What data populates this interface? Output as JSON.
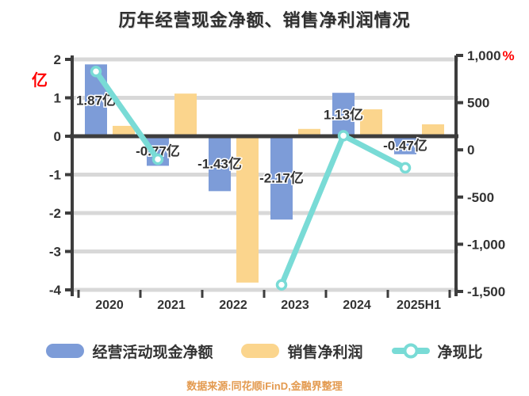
{
  "title": "历年经营现金净额、销售净利润情况",
  "axes": {
    "left": {
      "unit": "亿",
      "unit_color": "#FF0000",
      "tick_labels": [
        "2",
        "1",
        "0",
        "-1",
        "-2",
        "-3",
        "-4"
      ],
      "tick_values": [
        2,
        1,
        0,
        -1,
        -2,
        -3,
        -4
      ]
    },
    "right": {
      "unit": "%",
      "unit_color": "#FF0000",
      "tick_labels": [
        "1,000",
        "500",
        "0",
        "-500",
        "-1,000",
        "-1,500"
      ],
      "tick_values": [
        1000,
        500,
        0,
        -500,
        -1000,
        -1500
      ]
    },
    "x": {
      "categories": [
        "2020",
        "2021",
        "2022",
        "2023",
        "2024",
        "2025H1"
      ]
    }
  },
  "chart_data": {
    "type": "bar",
    "categories": [
      "2020",
      "2021",
      "2022",
      "2023",
      "2024",
      "2025H1"
    ],
    "series": [
      {
        "name": "经营活动现金净额",
        "type": "bar",
        "axis": "left",
        "unit": "亿",
        "color": "#7D9CD8",
        "values": [
          1.87,
          -0.77,
          -1.43,
          -2.17,
          1.13,
          -0.47
        ],
        "labels": [
          "1.87亿",
          "-0.77亿",
          "-1.43亿",
          "-2.17亿",
          "1.13亿",
          "-0.47亿"
        ]
      },
      {
        "name": "销售净利润",
        "type": "bar",
        "axis": "left",
        "unit": "亿",
        "color": "#FBD58D",
        "values": [
          0.27,
          1.11,
          -3.81,
          0.19,
          0.7,
          0.31
        ],
        "labels": []
      },
      {
        "name": "净现比",
        "type": "line",
        "axis": "right",
        "unit": "%",
        "color": "#79DBD6",
        "values": [
          830,
          -100,
          null,
          -1430,
          150,
          -190
        ],
        "labels": []
      }
    ],
    "left_axis_range": [
      -4,
      2
    ],
    "right_axis_range": [
      -1500,
      1000
    ],
    "grid": true,
    "legend_position": "bottom",
    "title": "历年经营现金净额、销售净利润情况"
  },
  "legend": {
    "items": [
      {
        "label": "经营活动现金净额",
        "swatch_color": "#7D9CD8",
        "marker": "bar"
      },
      {
        "label": "销售净利润",
        "swatch_color": "#FBD58D",
        "marker": "bar"
      },
      {
        "label": "净现比",
        "swatch_color": "#79DBD6",
        "marker": "line"
      }
    ]
  },
  "caption": "数据来源:同花顺iFinD,金融界整理",
  "colors": {
    "bar_cash": "#7D9CD8",
    "bar_profit": "#FBD58D",
    "line_ratio": "#79DBD6",
    "grid": "#D8D8D8",
    "axis": "#3D3D3D",
    "text": "#333333",
    "unit_red": "#FF0000",
    "caption_orange": "#E39A4F"
  }
}
